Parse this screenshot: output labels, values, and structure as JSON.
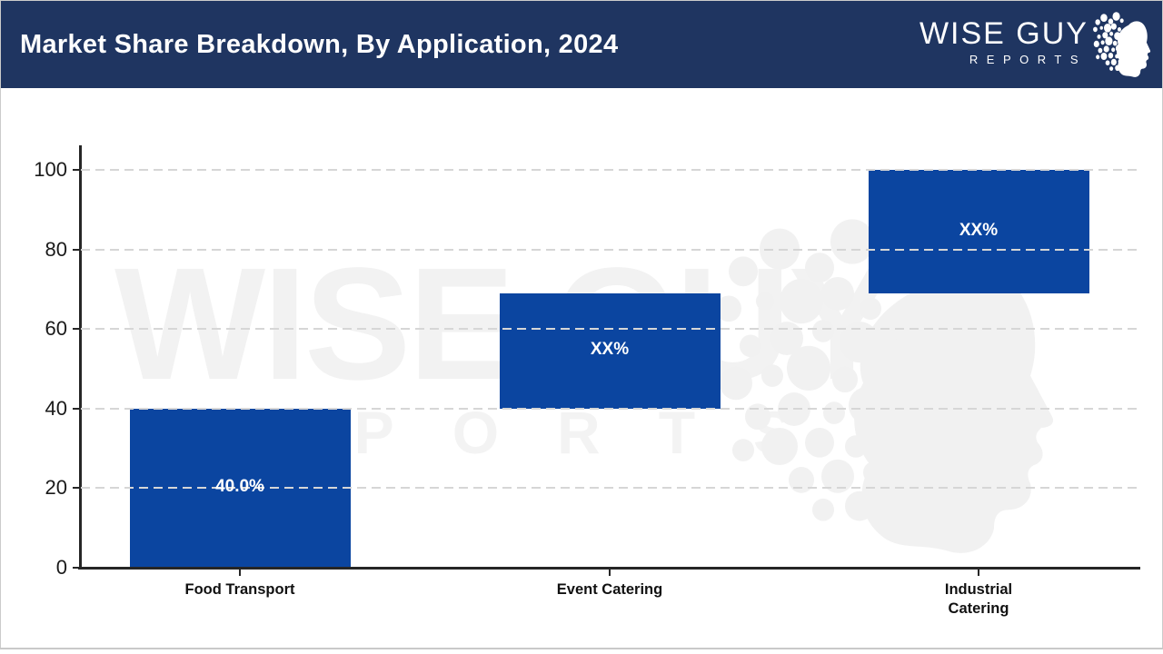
{
  "header": {
    "title": "Market Share Breakdown, By Application, 2024",
    "logo": {
      "line1": "WISE GUY",
      "line2": "REPORTS"
    }
  },
  "watermark": {
    "line1": "WISE GUY",
    "line2": "REPORTS"
  },
  "colors": {
    "header_bg": "#1f3561",
    "bar": "#0b45a0",
    "grid": "#d6d6d6",
    "axis": "#262626",
    "bar_label": "#ffffff",
    "watermark": "#f2f2f2"
  },
  "chart_data": {
    "type": "bar",
    "subtype": "waterfall",
    "title": "Market Share Breakdown, By Application, 2024",
    "categories": [
      "Food Transport",
      "Event Catering",
      "Industrial Catering"
    ],
    "segments": [
      {
        "category": "Food Transport",
        "start": 0,
        "end": 40,
        "label": "40.0%"
      },
      {
        "category": "Event Catering",
        "start": 40,
        "end": 69,
        "label": "XX%"
      },
      {
        "category": "Industrial Catering",
        "start": 69,
        "end": 100,
        "label": "XX%"
      }
    ],
    "yticks": [
      0,
      20,
      40,
      60,
      80,
      100
    ],
    "ylim": [
      0,
      105
    ],
    "xlabel": "",
    "ylabel": "",
    "grid": "dashed-horizontal",
    "legend": "none"
  }
}
